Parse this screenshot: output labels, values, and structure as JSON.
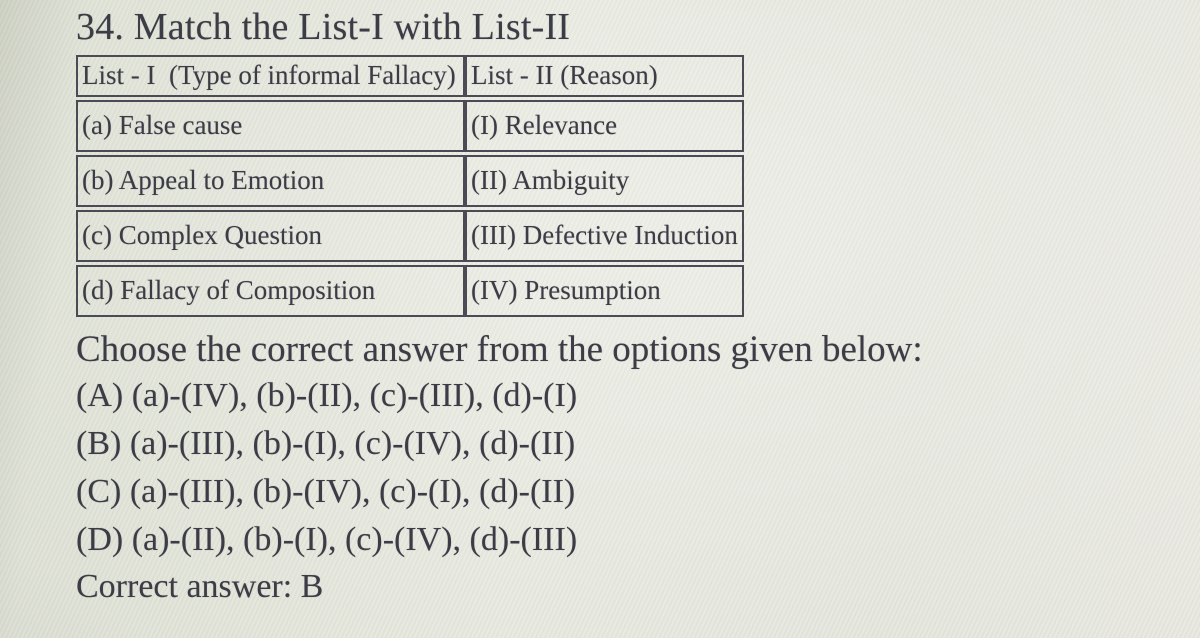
{
  "question": {
    "title": "34. Match the List-I with List-II",
    "prompt": "Choose the correct answer from the options given below:",
    "answer_line": "Correct answer: B"
  },
  "table": {
    "headers": [
      "List - I  (Type of informal Fallacy)",
      "List - II (Reason)"
    ],
    "rows": [
      [
        "(a) False cause",
        "(I) Relevance"
      ],
      [
        "(b) Appeal to Emotion",
        "(II) Ambiguity"
      ],
      [
        "(c) Complex Question",
        "(III) Defective Induction"
      ],
      [
        "(d) Fallacy of Composition",
        "(IV) Presumption"
      ]
    ]
  },
  "options": [
    "(A) (a)-(IV), (b)-(II), (c)-(III), (d)-(I)",
    "(B) (a)-(III), (b)-(I), (c)-(IV), (d)-(II)",
    "(C) (a)-(III), (b)-(IV), (c)-(I), (d)-(II)",
    "(D) (a)-(II), (b)-(I), (c)-(IV), (d)-(III)"
  ],
  "colors": {
    "text": "#3c3c46",
    "table_border": "#4b4b55",
    "background": "#e5e7dd"
  }
}
